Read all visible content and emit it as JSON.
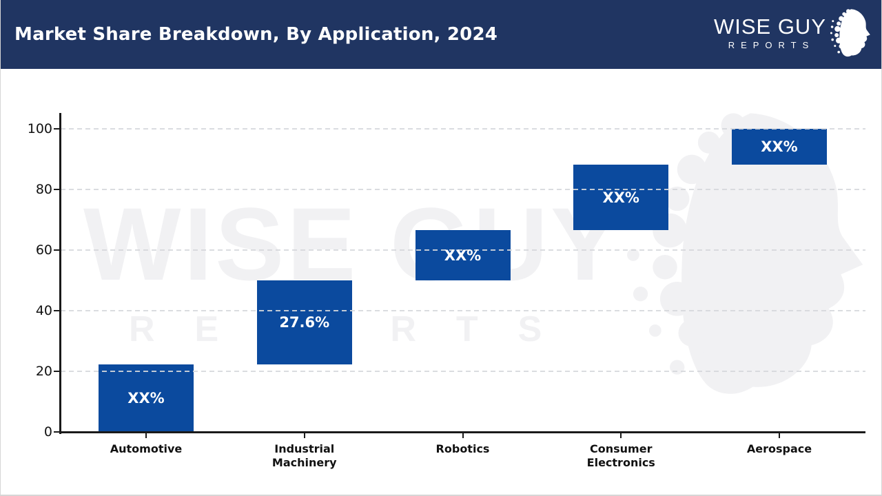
{
  "header": {
    "title": "Market Share Breakdown, By Application, 2024",
    "logo": {
      "wordmark": "WISE GUY",
      "subtext": "REPORTS"
    }
  },
  "watermark": {
    "line1": "WISE GUY",
    "line2": "REPORTS"
  },
  "chart_data": {
    "type": "bar",
    "subtype": "waterfall",
    "title": "Market Share Breakdown, By Application, 2024",
    "categories": [
      "Automotive",
      "Industrial\nMachinery",
      "Robotics",
      "Consumer\nElectronics",
      "Aerospace"
    ],
    "segments": [
      {
        "category": "Automotive",
        "start": 0,
        "end": 22.3,
        "label": "XX%"
      },
      {
        "category": "Industrial Machinery",
        "start": 22.3,
        "end": 49.9,
        "label": "27.6%"
      },
      {
        "category": "Robotics",
        "start": 49.9,
        "end": 66.5,
        "label": "XX%"
      },
      {
        "category": "Consumer Electronics",
        "start": 66.5,
        "end": 88.2,
        "label": "XX%"
      },
      {
        "category": "Aerospace",
        "start": 88.2,
        "end": 100.0,
        "label": "XX%"
      }
    ],
    "ylim": [
      0,
      100
    ],
    "yticks": [
      0,
      20,
      40,
      60,
      80,
      100
    ],
    "xlabel": "",
    "ylabel": "",
    "grid": "horizontal-dashed",
    "legend": "none",
    "colors": {
      "bar": "#0b4a9e",
      "bar_label": "#ffffff",
      "grid": "#d9d9d9",
      "axis": "#1a1a1a",
      "header_bg": "#203562",
      "watermark": "#f1f1f3"
    }
  }
}
